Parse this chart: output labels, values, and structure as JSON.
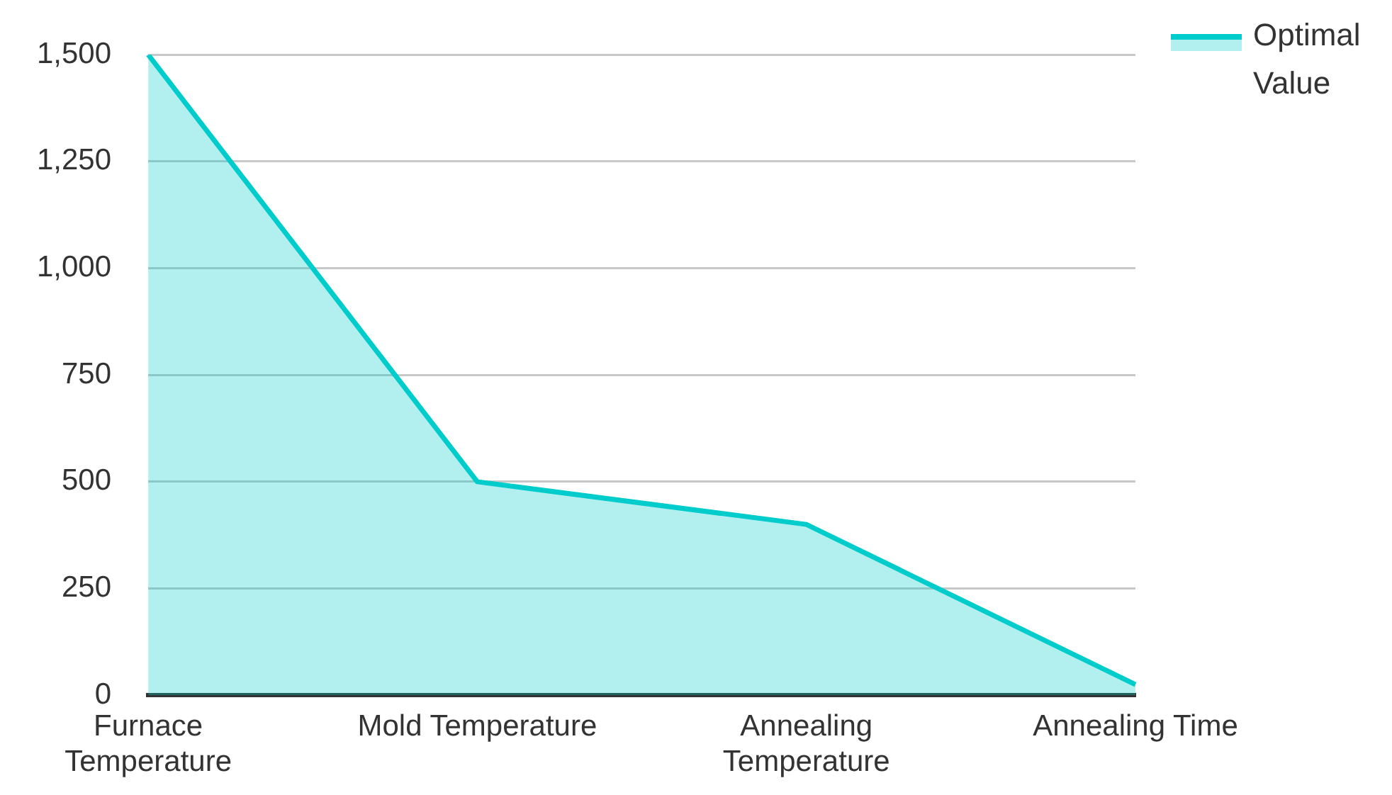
{
  "chart_data": {
    "type": "area",
    "categories": [
      "Furnace Temperature",
      "Mold Temperature",
      "Annealing Temperature",
      "Annealing Time"
    ],
    "series": [
      {
        "name": "Optimal Value",
        "color": "#00cccc",
        "values": [
          1500,
          500,
          400,
          25
        ]
      }
    ],
    "ylim": [
      0,
      1500
    ],
    "yticks": [
      0,
      250,
      500,
      750,
      {
        "value": 1000,
        "label": "1,000"
      },
      {
        "value": 1250,
        "label": "1,250"
      },
      {
        "value": 1500,
        "label": "1,500"
      }
    ],
    "grid": "y",
    "legend": "top right",
    "marker": "none"
  }
}
